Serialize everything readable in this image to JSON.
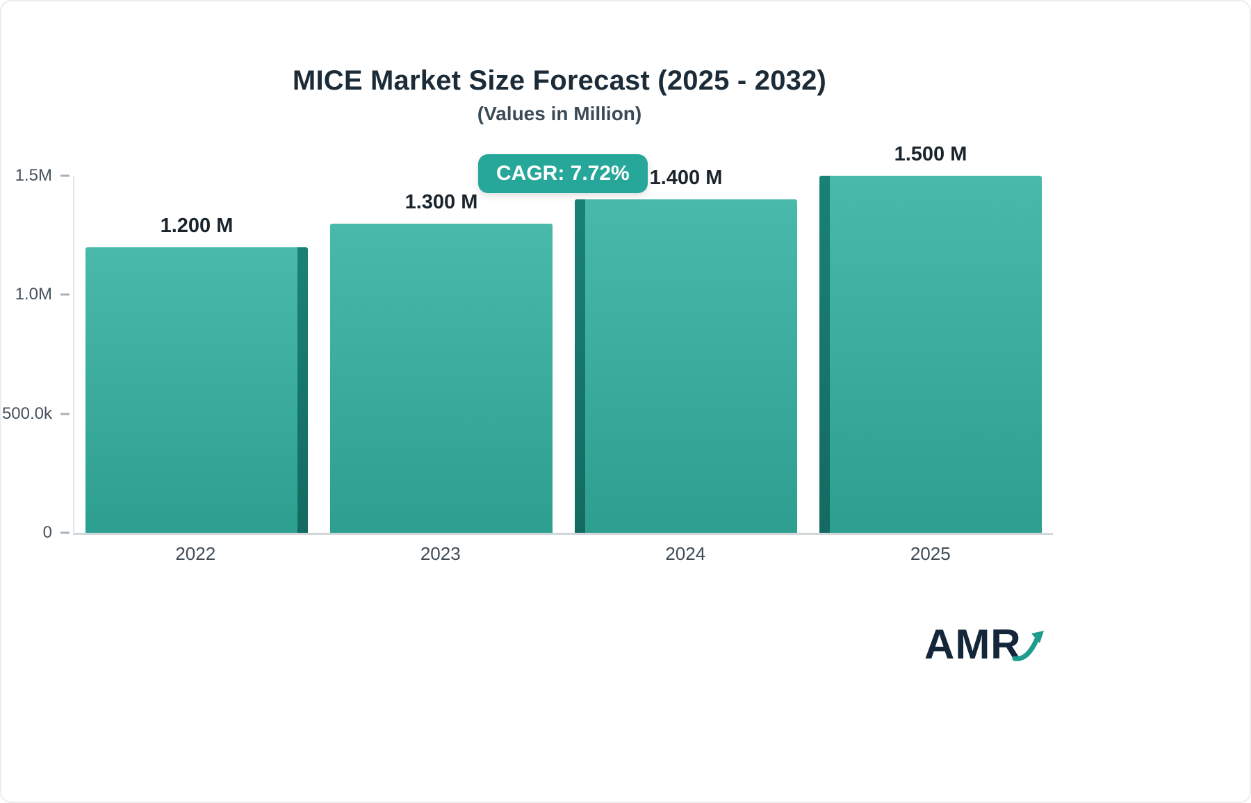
{
  "chart": {
    "title": "MICE Market Size Forecast (2025 - 2032)",
    "subtitle": "(Values in Million)",
    "cagr_label": "CAGR: 7.72%"
  },
  "chart_data": {
    "type": "bar",
    "categories": [
      "2022",
      "2023",
      "2024",
      "2025"
    ],
    "values": [
      1200,
      1300,
      1400,
      1500
    ],
    "value_labels": [
      "1.200 M",
      "1.300 M",
      "1.400 M",
      "1.500 M"
    ],
    "title": "MICE Market Size Forecast (2025 - 2032)",
    "subtitle": "(Values in Million)",
    "xlabel": "",
    "ylabel": "",
    "ylim": [
      0,
      1500
    ],
    "yticks": [
      {
        "value": 0,
        "label": "0"
      },
      {
        "value": 500,
        "label": "500.0k"
      },
      {
        "value": 1000,
        "label": "1.0M"
      },
      {
        "value": 1500,
        "label": "1.5M"
      }
    ],
    "annotation": "CAGR: 7.72%",
    "legend": "none",
    "grid": "off"
  },
  "colors": {
    "accent": "#27a69a",
    "bar_top": "#48b9ab",
    "bar_bottom": "#2d9f90",
    "bar_edge": "#1a8177",
    "title_text": "#1c2b38",
    "axis_text": "#46525c"
  },
  "branding": {
    "logo_text": "AMR"
  }
}
